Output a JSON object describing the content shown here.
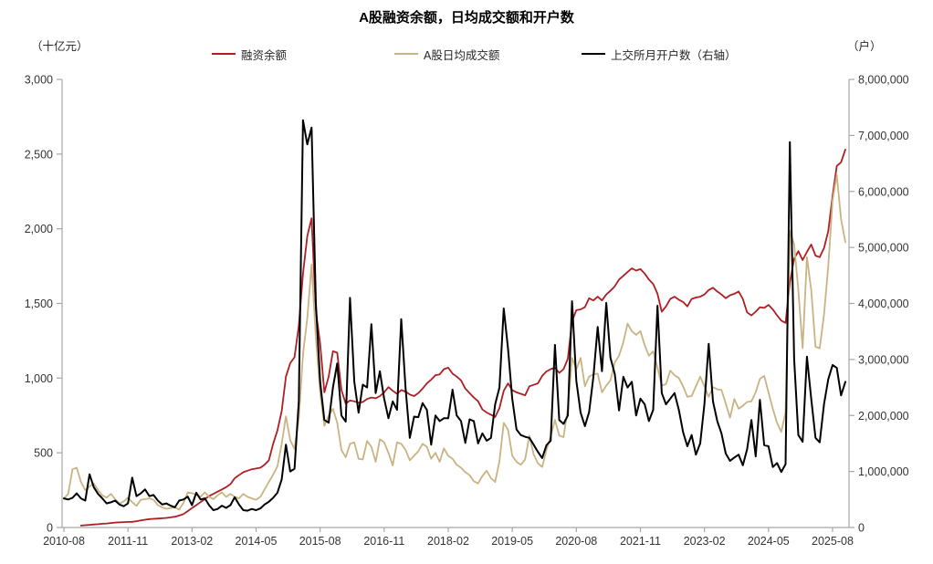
{
  "title": "A股融资余额，日均成交额和开户数",
  "left_axis_unit": "（十亿元）",
  "right_axis_unit": "（户）",
  "colors": {
    "accent_red": "#AF1E23",
    "accent_tan": "#C9B382",
    "accent_black": "#000000",
    "axis_line": "#A6A6A6",
    "tick_text": "#333333"
  },
  "chart_data": {
    "type": "line",
    "title": "A股融资余额，日均成交额和开户数",
    "grid": false,
    "legend_position": "top",
    "x": {
      "start": "2010-08",
      "step_months": 1,
      "count": 184,
      "tick_indices": [
        0,
        15,
        30,
        45,
        60,
        75,
        90,
        105,
        120,
        135,
        150,
        165,
        180
      ],
      "tick_labels": [
        "2010-08",
        "2011-11",
        "2013-02",
        "2014-05",
        "2015-08",
        "2016-11",
        "2018-02",
        "2019-05",
        "2020-08",
        "2021-11",
        "2023-02",
        "2024-05",
        "2025-08"
      ]
    },
    "y_left": {
      "min": 0,
      "max": 3000,
      "unit": "十亿元",
      "tick_values": [
        0,
        500,
        1000,
        1500,
        2000,
        2500,
        3000
      ],
      "tick_labels": [
        "0",
        "500",
        "1,000",
        "1,500",
        "2,000",
        "2,500",
        "3,000"
      ]
    },
    "y_right": {
      "min": 0,
      "max": 8000000,
      "unit": "户",
      "tick_values": [
        0,
        1000000,
        2000000,
        3000000,
        4000000,
        5000000,
        6000000,
        7000000,
        8000000
      ],
      "tick_labels": [
        "0",
        "1,000,000",
        "2,000,000",
        "3,000,000",
        "4,000,000",
        "5,000,000",
        "6,000,000",
        "7,000,000",
        "8,000,000"
      ]
    },
    "series": [
      {
        "name": "融资余额",
        "axis": "left",
        "color": "#AF1E23",
        "width": 1.8,
        "values": [
          null,
          null,
          null,
          null,
          13,
          15,
          18,
          20,
          22,
          25,
          27,
          30,
          33,
          34,
          36,
          37,
          38,
          42,
          47,
          52,
          56,
          58,
          60,
          62,
          64,
          68,
          72,
          80,
          90,
          110,
          130,
          150,
          170,
          190,
          210,
          225,
          240,
          255,
          270,
          290,
          330,
          350,
          370,
          380,
          390,
          395,
          400,
          420,
          450,
          560,
          650,
          780,
          1010,
          1100,
          1140,
          1350,
          1700,
          1950,
          2070,
          1450,
          1230,
          905,
          1010,
          1180,
          1170,
          920,
          830,
          850,
          845,
          835,
          840,
          860,
          870,
          865,
          880,
          905,
          940,
          915,
          895,
          920,
          910,
          890,
          880,
          900,
          930,
          965,
          990,
          1020,
          1025,
          1060,
          1070,
          1030,
          1010,
          985,
          930,
          900,
          870,
          845,
          790,
          770,
          755,
          740,
          800,
          915,
          965,
          920,
          905,
          895,
          885,
          945,
          955,
          965,
          1015,
          1045,
          1060,
          1070,
          1035,
          1060,
          1130,
          1380,
          1455,
          1460,
          1475,
          1535,
          1520,
          1545,
          1520,
          1560,
          1585,
          1615,
          1660,
          1685,
          1710,
          1735,
          1720,
          1730,
          1700,
          1660,
          1630,
          1565,
          1445,
          1480,
          1530,
          1545,
          1525,
          1510,
          1480,
          1530,
          1540,
          1545,
          1560,
          1590,
          1605,
          1580,
          1560,
          1535,
          1555,
          1565,
          1580,
          1530,
          1440,
          1420,
          1445,
          1475,
          1470,
          1490,
          1460,
          1420,
          1385,
          1370,
          1640,
          1800,
          1850,
          1790,
          1845,
          1895,
          1820,
          1810,
          1870,
          1985,
          2220,
          2420,
          2445,
          2530
        ]
      },
      {
        "name": "A股日均成交额",
        "axis": "left",
        "color": "#C9B382",
        "width": 1.8,
        "values": [
          195,
          225,
          390,
          400,
          305,
          250,
          275,
          295,
          250,
          215,
          200,
          225,
          190,
          160,
          175,
          200,
          170,
          145,
          185,
          190,
          195,
          185,
          150,
          135,
          125,
          130,
          135,
          120,
          165,
          235,
          230,
          220,
          205,
          235,
          205,
          190,
          215,
          235,
          205,
          225,
          205,
          195,
          225,
          205,
          195,
          185,
          205,
          255,
          305,
          355,
          410,
          560,
          745,
          585,
          525,
          730,
          1160,
          1400,
          1760,
          1270,
          905,
          680,
          750,
          795,
          700,
          520,
          470,
          560,
          570,
          460,
          455,
          580,
          540,
          440,
          590,
          570,
          500,
          415,
          570,
          560,
          520,
          450,
          480,
          510,
          560,
          540,
          460,
          500,
          440,
          530,
          480,
          460,
          420,
          400,
          370,
          350,
          310,
          295,
          345,
          380,
          330,
          305,
          445,
          700,
          655,
          480,
          440,
          420,
          455,
          615,
          490,
          430,
          405,
          520,
          610,
          720,
          615,
          605,
          800,
          1135,
          1060,
          1135,
          945,
          1010,
          1025,
          1030,
          905,
          950,
          985,
          1105,
          1150,
          1240,
          1365,
          1315,
          1290,
          1315,
          1220,
          1150,
          1180,
          1070,
          950,
          960,
          1050,
          1020,
          1000,
          945,
          875,
          880,
          945,
          1010,
          945,
          875,
          940,
          925,
          920,
          830,
          735,
          860,
          795,
          815,
          840,
          845,
          905,
          995,
          1015,
          905,
          795,
          700,
          640,
          770,
          1985,
          1895,
          1590,
          1200,
          1810,
          1590,
          1210,
          1200,
          1425,
          1750,
          2190,
          2360,
          2065,
          1910
        ]
      },
      {
        "name": "上交所月开户数（右轴）",
        "axis": "right",
        "color": "#000000",
        "width": 2,
        "values": [
          520000,
          500000,
          530000,
          610000,
          520000,
          480000,
          950000,
          720000,
          600000,
          520000,
          430000,
          450000,
          480000,
          410000,
          380000,
          430000,
          890000,
          560000,
          610000,
          680000,
          560000,
          580000,
          480000,
          410000,
          430000,
          390000,
          360000,
          480000,
          500000,
          550000,
          400000,
          620000,
          500000,
          520000,
          400000,
          310000,
          330000,
          390000,
          350000,
          400000,
          540000,
          410000,
          310000,
          300000,
          330000,
          310000,
          340000,
          410000,
          460000,
          530000,
          620000,
          860000,
          1480000,
          1000000,
          1050000,
          2250000,
          7270000,
          6840000,
          7140000,
          4000000,
          2600000,
          1920000,
          1870000,
          2500000,
          2930000,
          2000000,
          1890000,
          4100000,
          2600000,
          2050000,
          2550000,
          2500000,
          3630000,
          2400000,
          2790000,
          2300000,
          1950000,
          2250000,
          2100000,
          3720000,
          2500000,
          1600000,
          1980000,
          1970000,
          2220000,
          2100000,
          1480000,
          2000000,
          1900000,
          1950000,
          1950000,
          2460000,
          2000000,
          1900000,
          1510000,
          1930000,
          1900000,
          1500000,
          1680000,
          1550000,
          1600000,
          2200000,
          2500000,
          3910000,
          3190000,
          2300000,
          1750000,
          1650000,
          1620000,
          1600000,
          1480000,
          1350000,
          1240000,
          1470000,
          1550000,
          3260000,
          1920000,
          1850000,
          2000000,
          4040000,
          2620000,
          2050000,
          1810000,
          2060000,
          2690000,
          3580000,
          2790000,
          4010000,
          3030000,
          2740000,
          2090000,
          2690000,
          2500000,
          2600000,
          2000000,
          2300000,
          2200000,
          1900000,
          2100000,
          3960000,
          2400000,
          2200000,
          2300000,
          2400000,
          2100000,
          1700000,
          1450000,
          1650000,
          1300000,
          1500000,
          2200000,
          3280000,
          2250000,
          1900000,
          1680000,
          1320000,
          1190000,
          1250000,
          1300000,
          1110000,
          1400000,
          1920000,
          1270000,
          2280000,
          1470000,
          1450000,
          1080000,
          1150000,
          990000,
          1130000,
          6880000,
          3010000,
          1650000,
          1530000,
          3050000,
          2300000,
          1600000,
          1520000,
          2200000,
          2650000,
          2900000,
          2850000,
          2360000,
          2600000
        ]
      }
    ]
  }
}
